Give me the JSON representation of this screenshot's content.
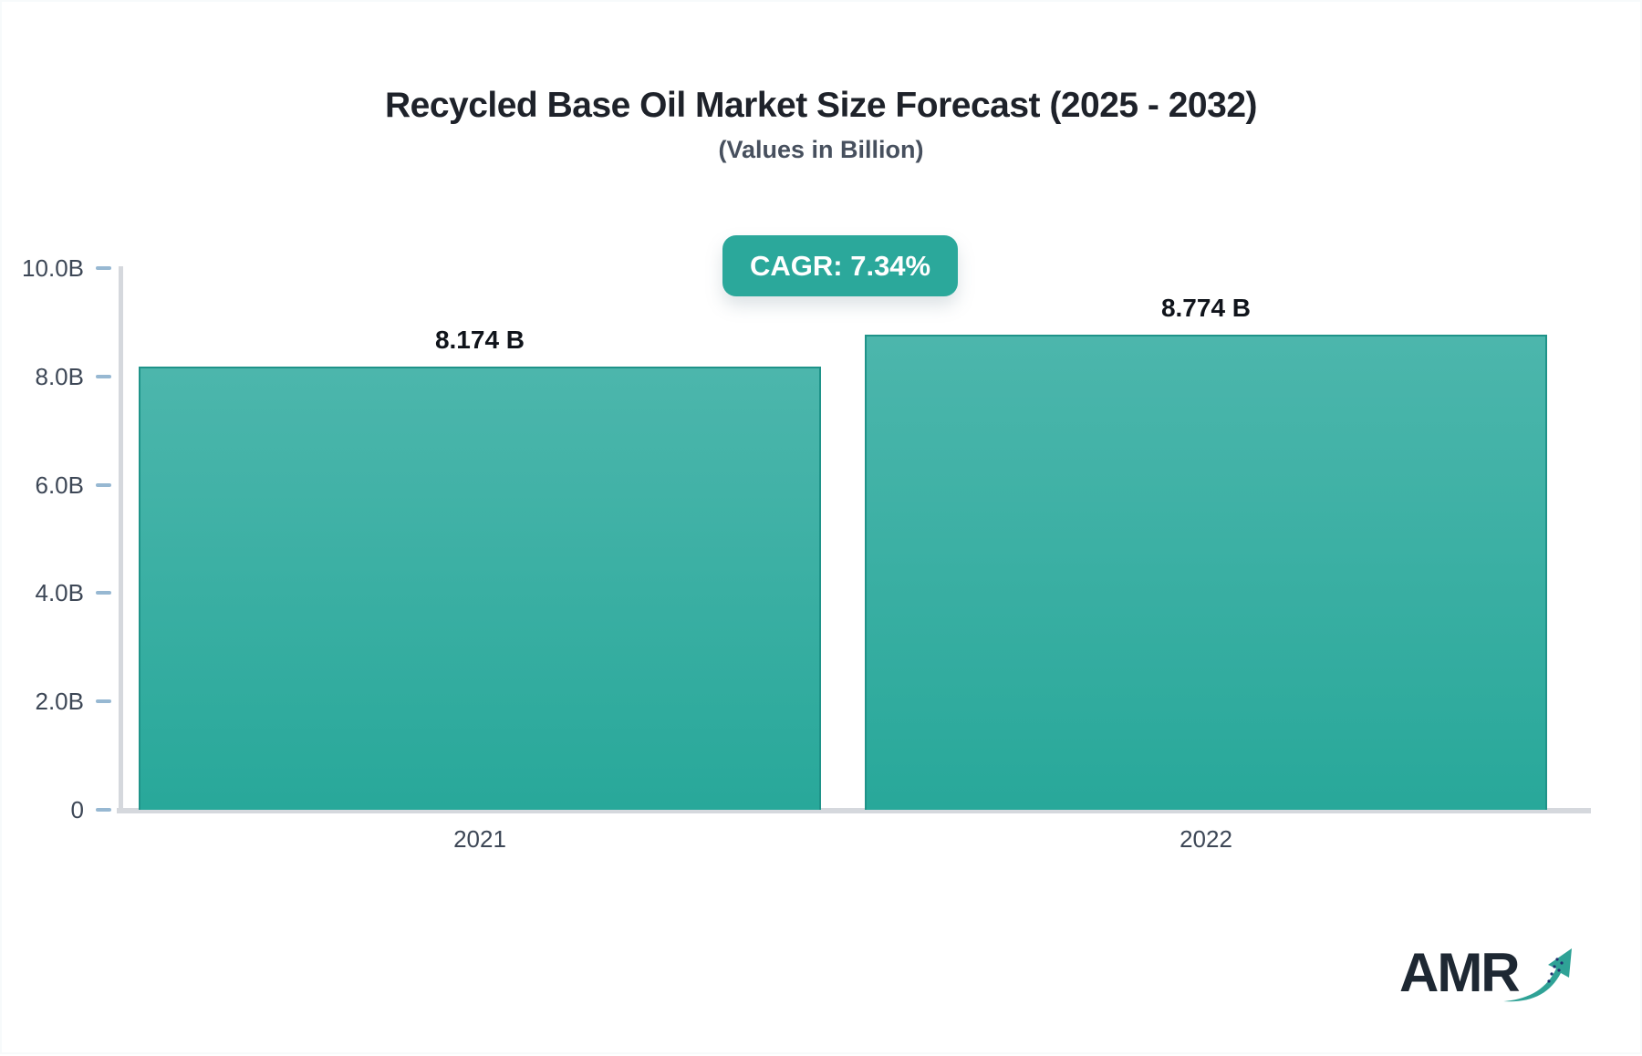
{
  "title": "Recycled Base Oil Market Size Forecast (2025 - 2032)",
  "subtitle": "(Values in Billion)",
  "cagr_badge": "CAGR: 7.34%",
  "logo": {
    "text": "AMR"
  },
  "colors": {
    "title": "#1e222a",
    "badge_bg": "#2ba89b",
    "bar_top": "#4cb6ac",
    "bar_bottom": "#28a89a",
    "bar_border": "#1f9389",
    "axis_line": "#d5d8dd",
    "tick": "#97b8d2",
    "label": "#3d4756",
    "logo_navy": "#1e2833",
    "logo_arrow": "#2fa296"
  },
  "chart_data": {
    "type": "bar",
    "title": "Recycled Base Oil Market Size Forecast (2025 - 2032)",
    "subtitle": "(Values in Billion)",
    "cagr_text": "CAGR: 7.34%",
    "categories": [
      "2021",
      "2022"
    ],
    "values": [
      8.174,
      8.774
    ],
    "value_labels": [
      "8.174 B",
      "8.774 B"
    ],
    "xlabel": "",
    "ylabel": "",
    "ylim": [
      0,
      10
    ],
    "ytick_values": [
      10,
      8,
      6,
      4,
      2,
      0
    ],
    "ytick_labels": [
      "10.0B",
      "8.0B",
      "6.0B",
      "4.0B",
      "2.0B",
      "0"
    ],
    "grid": false,
    "legend": false
  }
}
